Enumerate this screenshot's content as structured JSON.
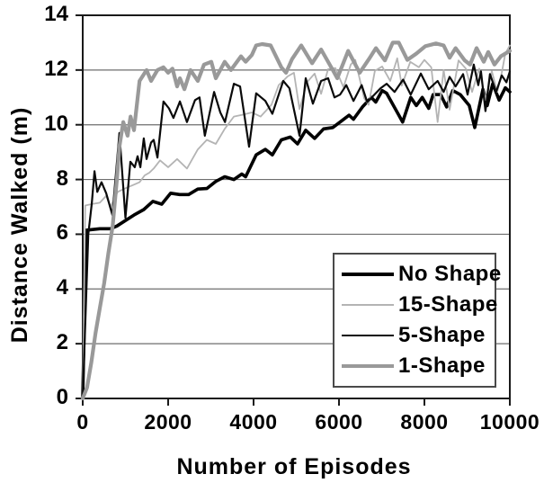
{
  "chart_data": {
    "type": "line",
    "title": "",
    "xlabel": "Number of Episodes",
    "ylabel": "Distance Walked (m)",
    "xlim": [
      0,
      10000
    ],
    "ylim": [
      0,
      14
    ],
    "xticks": [
      0,
      2000,
      4000,
      6000,
      8000,
      10000
    ],
    "yticks": [
      0,
      2,
      4,
      6,
      8,
      10,
      12,
      14
    ],
    "grid": "horizontal-only",
    "grid_color": "#6e6e6e",
    "axis_color": "#1a1a1a",
    "legend_position": "inside-lower-right",
    "series": [
      {
        "name": "No Shape",
        "color": "#000000",
        "width": 3.6,
        "x": [
          0,
          80,
          400,
          650,
          800,
          1000,
          1200,
          1430,
          1640,
          1850,
          2060,
          2270,
          2480,
          2695,
          2905,
          3115,
          3325,
          3540,
          3725,
          3815,
          4060,
          4275,
          4440,
          4650,
          4860,
          5030,
          5220,
          5430,
          5640,
          5855,
          6025,
          6235,
          6340,
          6550,
          6755,
          6860,
          7010,
          7115,
          7490,
          7680,
          7810,
          7950,
          8100,
          8205,
          8380,
          8520,
          8665,
          8840,
          9050,
          9180,
          9370,
          9470,
          9600,
          9750,
          9895,
          10000
        ],
        "y": [
          0,
          6.15,
          6.2,
          6.2,
          6.3,
          6.5,
          6.7,
          6.9,
          7.2,
          7.1,
          7.5,
          7.45,
          7.45,
          7.65,
          7.67,
          7.93,
          8.1,
          8.0,
          8.2,
          8.1,
          8.9,
          9.1,
          8.9,
          9.45,
          9.55,
          9.3,
          9.8,
          9.5,
          9.85,
          9.9,
          10.1,
          10.35,
          10.2,
          10.65,
          11.0,
          10.83,
          11.25,
          11.15,
          10.1,
          11.0,
          10.7,
          11.0,
          10.6,
          11.1,
          11.1,
          10.65,
          11.25,
          11.1,
          10.7,
          9.9,
          11.3,
          10.7,
          11.5,
          10.9,
          11.35,
          11.2
        ]
      },
      {
        "name": "15-Shape",
        "color": "#b4b4b4",
        "width": 1.8,
        "x": [
          0,
          60,
          200,
          400,
          550,
          650,
          820,
          1030,
          1180,
          1330,
          1450,
          1560,
          1660,
          1810,
          2000,
          2210,
          2440,
          2695,
          2905,
          3115,
          3325,
          3540,
          3750,
          3960,
          4165,
          4420,
          4590,
          4800,
          4945,
          5075,
          5260,
          5430,
          5580,
          5745,
          5915,
          6105,
          6275,
          6380,
          6590,
          6695,
          6840,
          7010,
          7200,
          7365,
          7470,
          7670,
          7870,
          8000,
          8160,
          8310,
          8450,
          8590,
          8800,
          8970,
          9115,
          9285,
          9430,
          9580,
          9705,
          9810,
          9895,
          10000
        ],
        "y": [
          0,
          7.05,
          7.1,
          7.15,
          7.4,
          7.0,
          7.55,
          7.7,
          7.8,
          7.9,
          8.15,
          8.25,
          8.4,
          8.7,
          8.45,
          8.75,
          8.4,
          9.1,
          9.45,
          9.3,
          9.85,
          10.3,
          10.37,
          10.45,
          10.3,
          10.73,
          11.45,
          11.77,
          11.9,
          10.57,
          11.57,
          11.87,
          11.13,
          12.03,
          12.07,
          11.37,
          12.2,
          12.37,
          10.97,
          10.73,
          11.97,
          12.13,
          11.6,
          12.43,
          11.43,
          12.3,
          12.1,
          12.37,
          12.1,
          10.1,
          12.0,
          10.55,
          12.35,
          12.05,
          11.2,
          12.05,
          10.9,
          11.95,
          11.2,
          11.9,
          12.6,
          12.9
        ]
      },
      {
        "name": "5-Shape",
        "color": "#0a0a0a",
        "width": 2.2,
        "x": [
          0,
          130,
          210,
          275,
          340,
          440,
          550,
          695,
          860,
          1000,
          1115,
          1220,
          1285,
          1350,
          1430,
          1495,
          1600,
          1660,
          1750,
          1890,
          2020,
          2125,
          2275,
          2440,
          2630,
          2735,
          2860,
          3075,
          3220,
          3330,
          3540,
          3685,
          3895,
          4060,
          4275,
          4440,
          4695,
          4840,
          5075,
          5220,
          5390,
          5580,
          5745,
          5895,
          6025,
          6170,
          6340,
          6530,
          6660,
          6970,
          7115,
          7300,
          7500,
          7680,
          7915,
          8100,
          8310,
          8450,
          8590,
          8730,
          8905,
          9010,
          9155,
          9260,
          9325,
          9430,
          9535,
          9680,
          9810,
          9920,
          10000
        ],
        "y": [
          0,
          6.0,
          7.1,
          8.3,
          7.55,
          7.9,
          7.5,
          6.7,
          9.7,
          6.6,
          8.65,
          8.45,
          8.85,
          8.45,
          9.5,
          8.75,
          9.35,
          9.45,
          8.8,
          10.85,
          10.6,
          10.25,
          10.85,
          10.1,
          10.9,
          11.0,
          9.6,
          11.2,
          10.45,
          10.1,
          11.5,
          11.4,
          9.2,
          11.15,
          10.87,
          10.4,
          11.6,
          11.33,
          9.6,
          11.7,
          10.77,
          11.6,
          11.7,
          11.0,
          11.1,
          11.45,
          10.87,
          11.45,
          10.83,
          11.33,
          11.5,
          11.2,
          11.65,
          11.1,
          11.87,
          11.3,
          11.6,
          11.2,
          11.75,
          11.4,
          11.85,
          11.1,
          12.2,
          11.45,
          11.95,
          10.5,
          11.85,
          11.2,
          11.8,
          11.55,
          11.95
        ]
      },
      {
        "name": "1-Shape",
        "color": "#999999",
        "width": 4.2,
        "x": [
          0,
          100,
          200,
          300,
          400,
          500,
          600,
          700,
          800,
          860,
          950,
          1050,
          1120,
          1200,
          1330,
          1495,
          1600,
          1750,
          1890,
          2000,
          2100,
          2210,
          2275,
          2380,
          2525,
          2695,
          2840,
          3010,
          3115,
          3325,
          3470,
          3705,
          3815,
          3960,
          4060,
          4200,
          4400,
          4650,
          4760,
          4900,
          5115,
          5370,
          5580,
          5855,
          5960,
          6215,
          6485,
          6700,
          6865,
          7075,
          7260,
          7400,
          7600,
          7810,
          8020,
          8270,
          8450,
          8590,
          8730,
          8945,
          9070,
          9220,
          9390,
          9495,
          9640,
          9790,
          10000
        ],
        "y": [
          0,
          0.4,
          1.3,
          2.4,
          3.3,
          4.2,
          5.3,
          6.3,
          8.0,
          9.2,
          10.1,
          9.6,
          10.3,
          9.8,
          11.6,
          12.0,
          11.6,
          12.0,
          12.1,
          11.9,
          12.05,
          11.4,
          11.7,
          11.3,
          12.0,
          11.6,
          12.2,
          12.3,
          11.7,
          12.3,
          12.0,
          12.5,
          12.3,
          12.55,
          12.9,
          12.95,
          12.9,
          12.1,
          11.9,
          12.4,
          12.9,
          12.25,
          12.75,
          12.0,
          11.7,
          12.7,
          11.9,
          12.4,
          12.8,
          12.35,
          13.0,
          13.0,
          12.37,
          12.6,
          12.87,
          12.97,
          12.9,
          12.45,
          12.8,
          12.35,
          12.2,
          12.8,
          12.3,
          12.66,
          12.2,
          12.5,
          12.7
        ]
      }
    ]
  }
}
